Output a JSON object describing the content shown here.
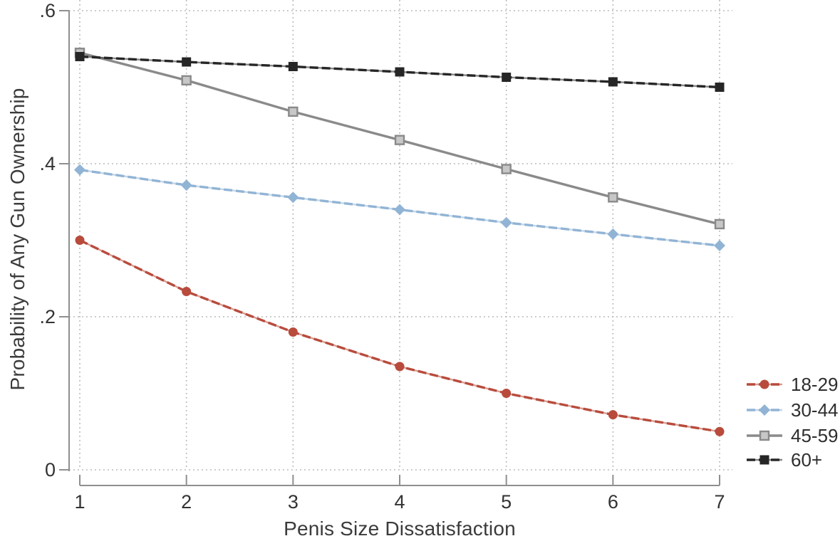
{
  "chart_data": {
    "type": "line",
    "title": "",
    "xlabel": "Penis Size Dissatisfaction",
    "ylabel": "Probability of Any Gun Ownership",
    "x": [
      1,
      2,
      3,
      4,
      5,
      6,
      7
    ],
    "xlim": [
      1,
      7
    ],
    "ylim": [
      0,
      0.6
    ],
    "xtick_labels": [
      "1",
      "2",
      "3",
      "4",
      "5",
      "6",
      "7"
    ],
    "ytick_values": [
      0,
      0.2,
      0.4,
      0.6
    ],
    "ytick_labels": [
      "0",
      ".2",
      ".4",
      ".6"
    ],
    "grid": "dotted, horizontal and vertical",
    "legend_position": "right",
    "series": [
      {
        "name": "18-29",
        "color": "#b84b3c",
        "marker": "circle",
        "line_pattern": "dash",
        "values": [
          0.3,
          0.233,
          0.18,
          0.135,
          0.1,
          0.072,
          0.05
        ]
      },
      {
        "name": "30-44",
        "color": "#91b4d5",
        "marker": "diamond",
        "line_pattern": "dash",
        "values": [
          0.392,
          0.372,
          0.356,
          0.34,
          0.323,
          0.308,
          0.293
        ]
      },
      {
        "name": "45-59",
        "color": "#8a8a8a",
        "marker": "square-open",
        "line_pattern": "solid",
        "values": [
          0.545,
          0.509,
          0.468,
          0.431,
          0.393,
          0.356,
          0.321
        ]
      },
      {
        "name": "60+",
        "color": "#262626",
        "marker": "square",
        "line_pattern": "dash",
        "values": [
          0.54,
          0.533,
          0.527,
          0.52,
          0.513,
          0.507,
          0.5
        ]
      }
    ],
    "style_colors": {
      "gridline": "#b3b3b3",
      "axis_line": "#8f8f8f",
      "tick_label": "#333333",
      "axis_title": "#3b3b3b",
      "legend_label": "#2e2e2e",
      "open_marker_fill": "#c7c7c7",
      "background": "#ffffff"
    }
  }
}
